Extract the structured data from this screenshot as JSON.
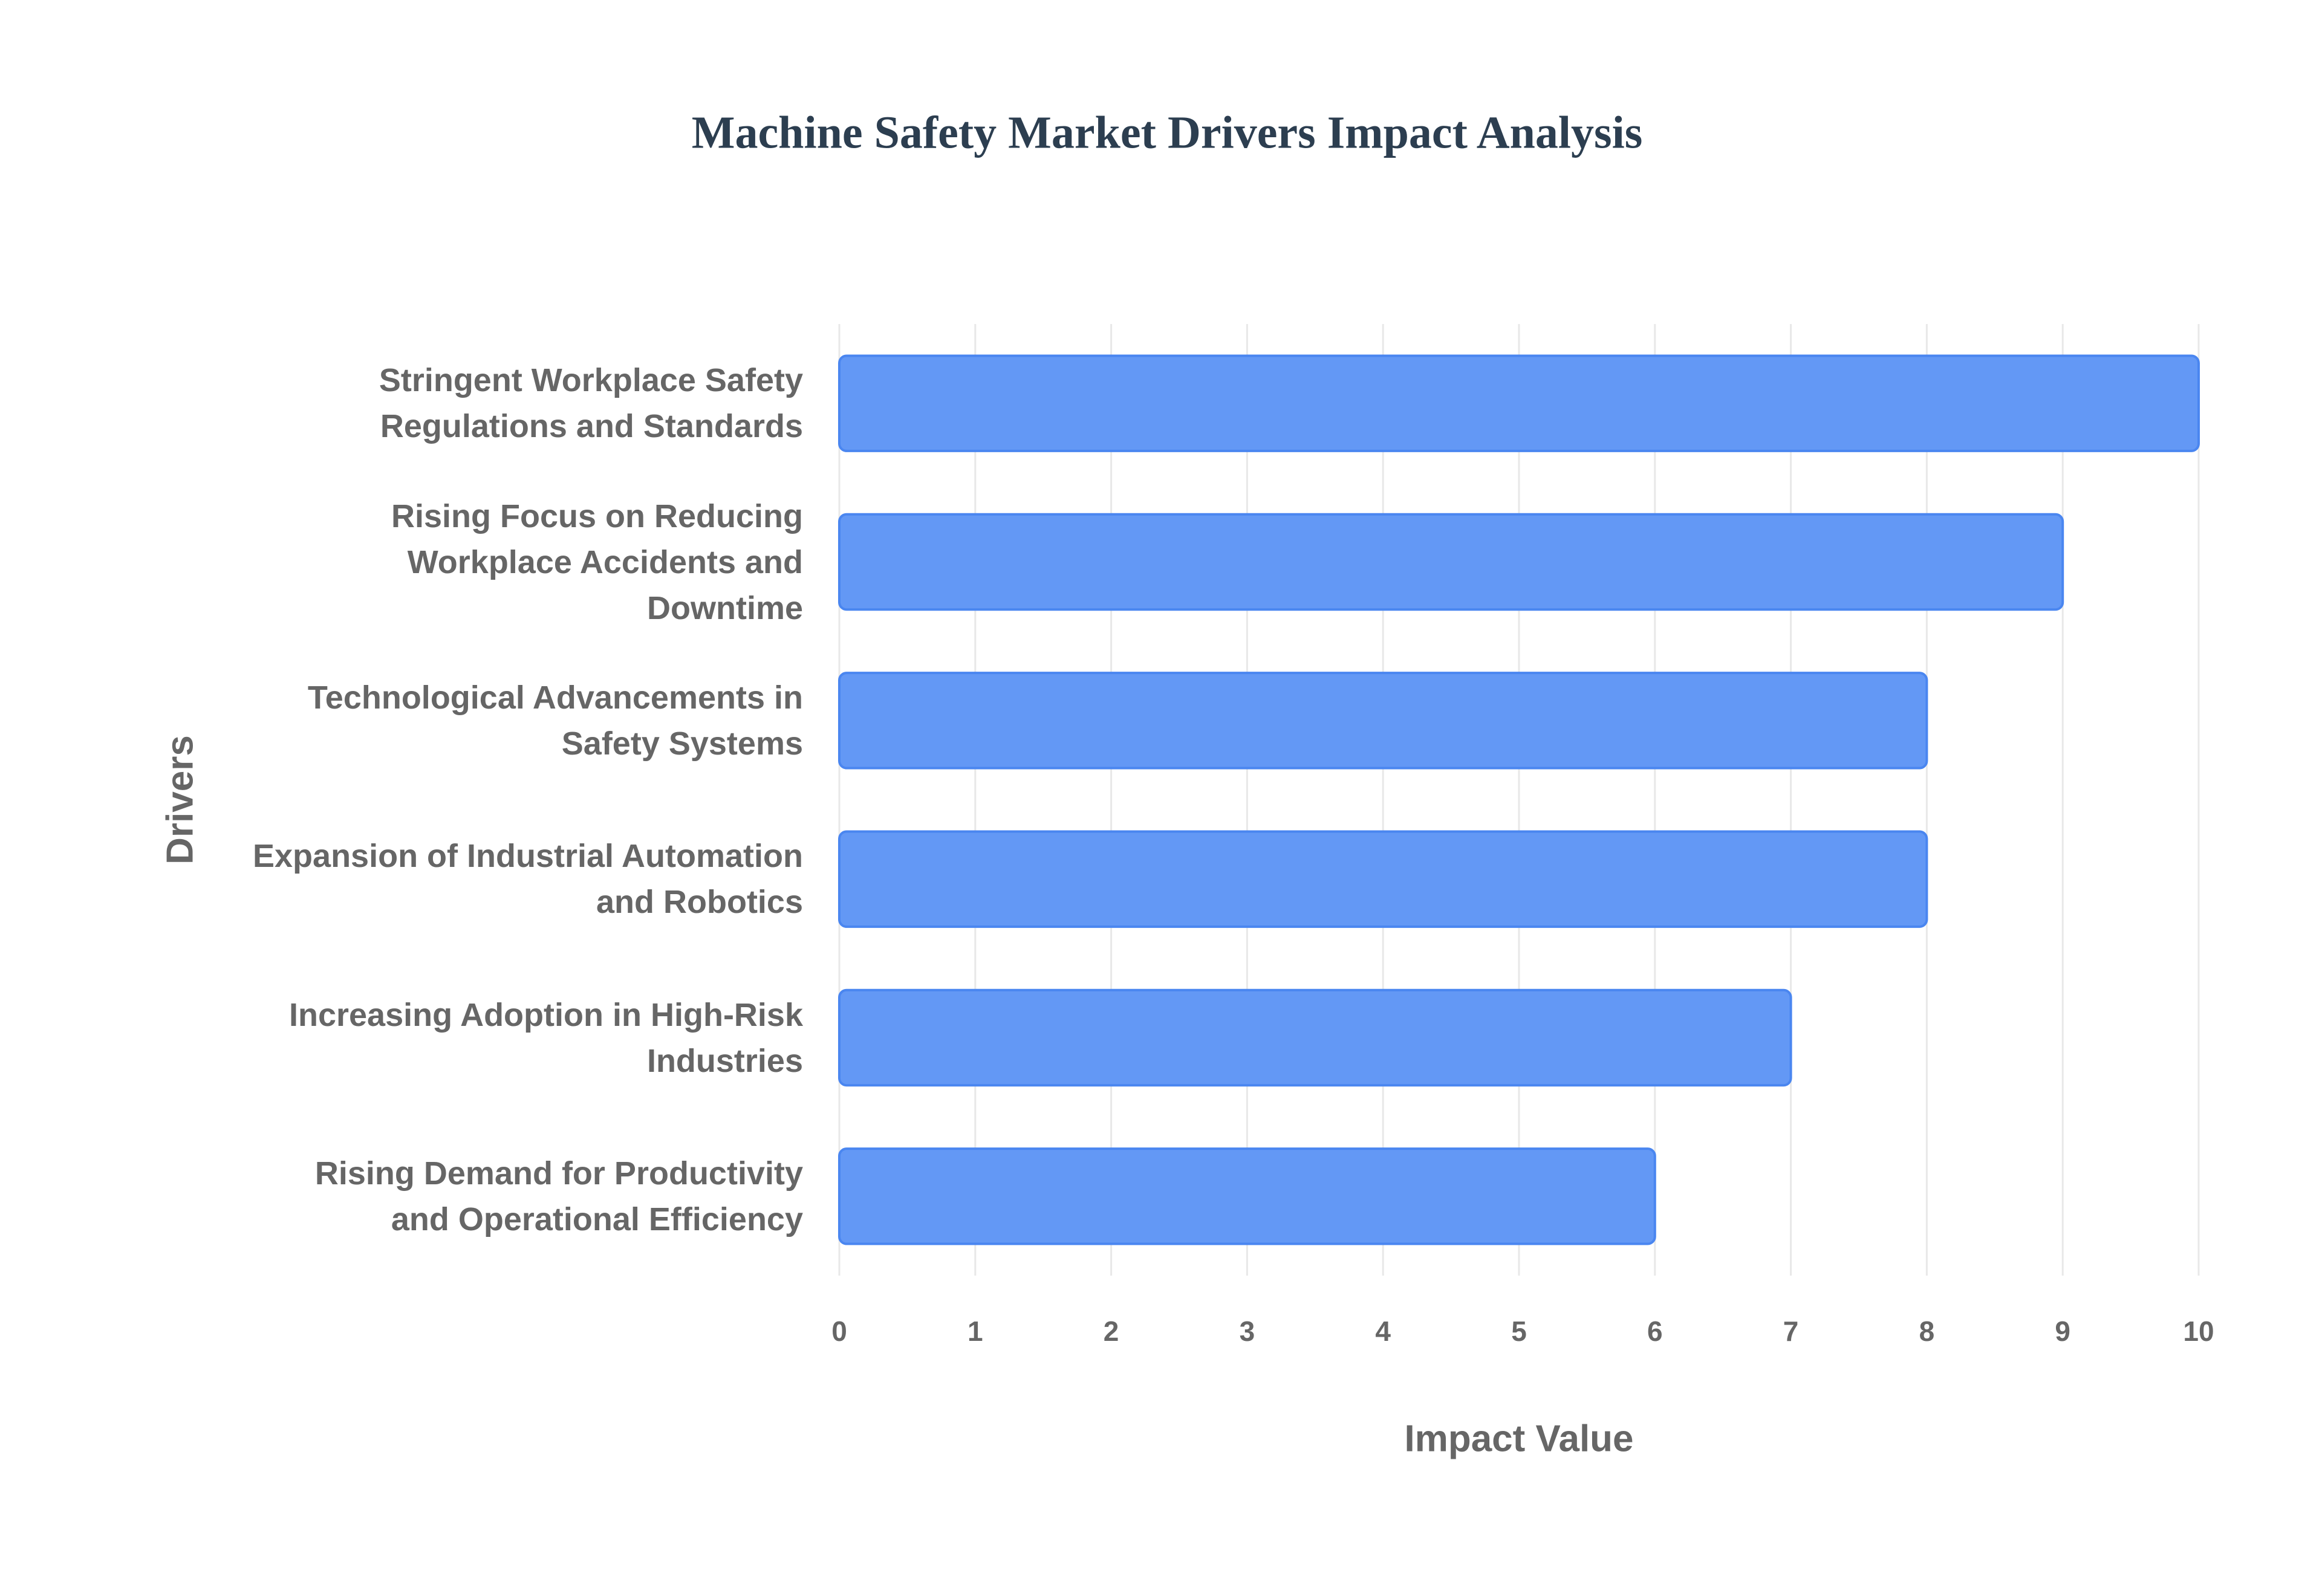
{
  "chart_data": {
    "type": "bar",
    "orientation": "horizontal",
    "title": "Machine Safety Market Drivers Impact Analysis",
    "x_label": "Impact Value",
    "y_label": "Drivers",
    "categories": [
      "Stringent Workplace Safety Regulations and Standards",
      "Rising Focus on Reducing Workplace Accidents and Downtime",
      "Technological Advancements in Safety Systems",
      "Expansion of Industrial Automation and Robotics",
      "Increasing Adoption in High-Risk Industries",
      "Rising Demand for Productivity and Operational Efficiency"
    ],
    "values": [
      10,
      9,
      8,
      8,
      7,
      6
    ],
    "color": "#6398f5",
    "edge_color": "#4a86f0",
    "xlim": [
      0,
      10
    ],
    "xticks": [
      0,
      1,
      2,
      3,
      4,
      5,
      6,
      7,
      8,
      9,
      10
    ],
    "grid": true
  }
}
